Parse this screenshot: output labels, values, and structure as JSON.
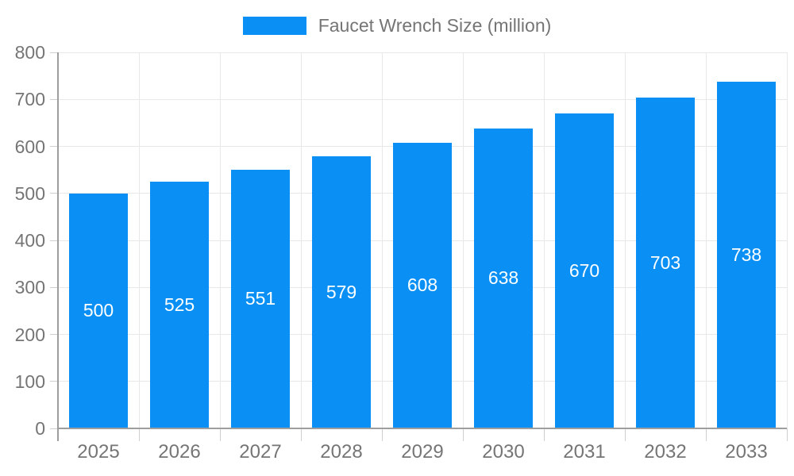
{
  "chart_data": {
    "type": "bar",
    "title": "Faucet Wrench Size (million)",
    "legend": {
      "label": "Faucet Wrench Size (million)",
      "position": "top"
    },
    "categories": [
      "2025",
      "2026",
      "2027",
      "2028",
      "2029",
      "2030",
      "2031",
      "2032",
      "2033"
    ],
    "values": [
      500,
      525,
      551,
      579,
      608,
      638,
      670,
      703,
      738
    ],
    "xlabel": "",
    "ylabel": "",
    "ylim": [
      0,
      800
    ],
    "yticks": [
      0,
      100,
      200,
      300,
      400,
      500,
      600,
      700,
      800
    ],
    "grid": true,
    "colors": {
      "bar": "#0a90f5",
      "value_label": "#ffffff",
      "axis": "#9e9e9e",
      "gridline": "#e8e8e8",
      "tick": "#cfcfcf",
      "tick_label": "#757575",
      "legend_label": "#757575",
      "background": "#ffffff"
    }
  }
}
